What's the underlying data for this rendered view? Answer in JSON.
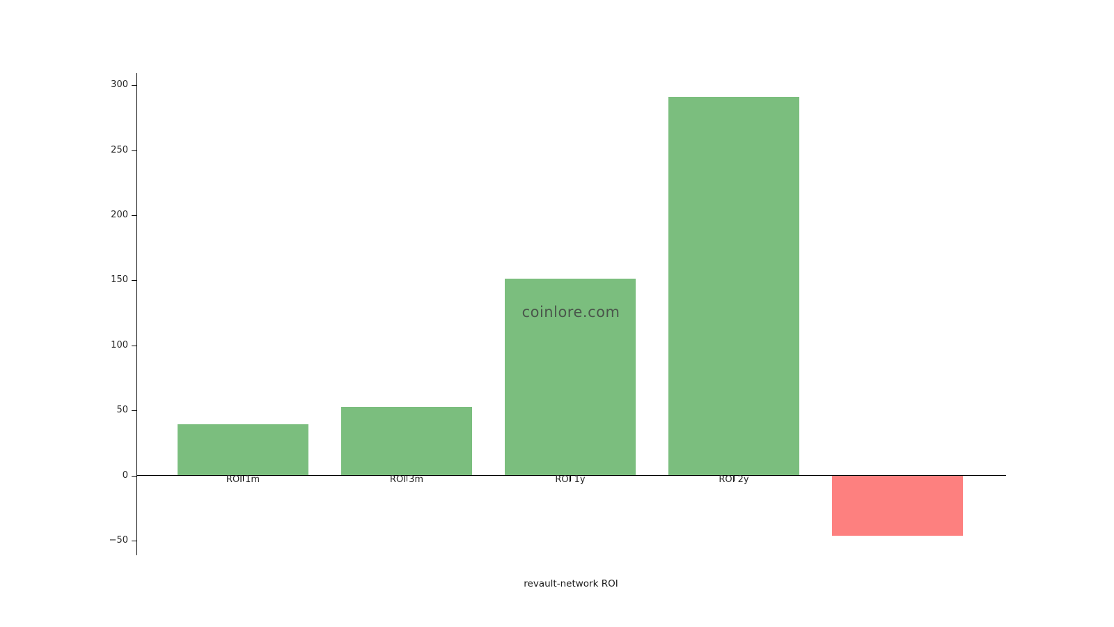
{
  "chart_data": {
    "type": "bar",
    "title": "revault-network ROI",
    "watermark": "coinlore.com",
    "categories": [
      "ROI 1m",
      "ROI 3m",
      "ROI 1y",
      "ROI 2y",
      ""
    ],
    "values": [
      39.3,
      52.6,
      151.6,
      291.4,
      -46.1
    ],
    "bar_colors": [
      "#7bbe7e",
      "#7bbe7e",
      "#7bbe7e",
      "#7bbe7e",
      "#fd807f"
    ],
    "ytick_labels": [
      "300",
      "250",
      "200",
      "150",
      "100",
      "50",
      "0",
      "−50"
    ],
    "ytick_values": [
      300,
      250,
      200,
      150,
      100,
      50,
      0,
      -50
    ],
    "ylim": [
      -61,
      309
    ],
    "xlabel": "",
    "ylabel": "",
    "grid": false,
    "legend_position": "none",
    "positive_color": "#7bbe7e",
    "negative_color": "#fd807f",
    "axis_color": "#000000",
    "text_color": "#262626"
  }
}
